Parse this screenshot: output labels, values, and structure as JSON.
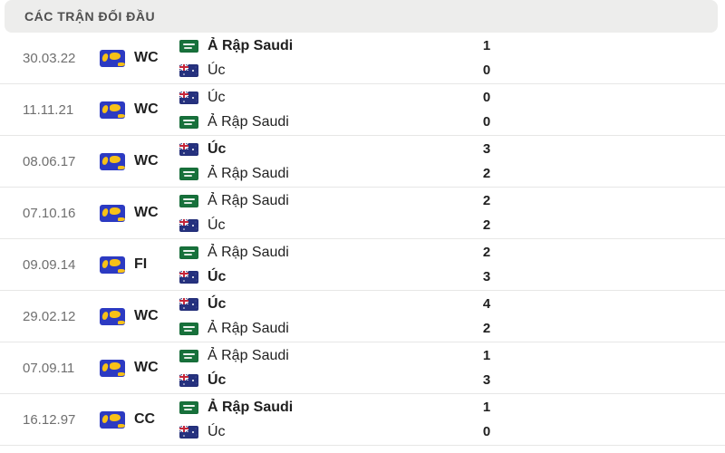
{
  "header": {
    "title": "CÁC TRẬN ĐỐI ĐẦU"
  },
  "icons": {
    "competition_badge": "world-map-icon",
    "flag_sa": "saudi-arabia-flag-icon",
    "flag_au": "australia-flag-icon"
  },
  "colors": {
    "header_bg": "#ededec",
    "header_text": "#4f4f4f",
    "text_dark": "#1f1f1f",
    "text_muted": "#6f6f6f",
    "divider": "#e7e7e6",
    "badge_blue": "#2c3ac2",
    "badge_yellow": "#f7c118",
    "saudi_green": "#17713b",
    "australia_blue": "#25317e"
  },
  "matches": [
    {
      "date": "30.03.22",
      "competition": "WC",
      "home": {
        "name": "Ả Rập Saudi",
        "flag": "sa",
        "score": 1,
        "winner": true
      },
      "away": {
        "name": "Úc",
        "flag": "au",
        "score": 0,
        "winner": false
      }
    },
    {
      "date": "11.11.21",
      "competition": "WC",
      "home": {
        "name": "Úc",
        "flag": "au",
        "score": 0,
        "winner": false
      },
      "away": {
        "name": "Ả Rập Saudi",
        "flag": "sa",
        "score": 0,
        "winner": false
      }
    },
    {
      "date": "08.06.17",
      "competition": "WC",
      "home": {
        "name": "Úc",
        "flag": "au",
        "score": 3,
        "winner": true
      },
      "away": {
        "name": "Ả Rập Saudi",
        "flag": "sa",
        "score": 2,
        "winner": false
      }
    },
    {
      "date": "07.10.16",
      "competition": "WC",
      "home": {
        "name": "Ả Rập Saudi",
        "flag": "sa",
        "score": 2,
        "winner": false
      },
      "away": {
        "name": "Úc",
        "flag": "au",
        "score": 2,
        "winner": false
      }
    },
    {
      "date": "09.09.14",
      "competition": "FI",
      "home": {
        "name": "Ả Rập Saudi",
        "flag": "sa",
        "score": 2,
        "winner": false
      },
      "away": {
        "name": "Úc",
        "flag": "au",
        "score": 3,
        "winner": true
      }
    },
    {
      "date": "29.02.12",
      "competition": "WC",
      "home": {
        "name": "Úc",
        "flag": "au",
        "score": 4,
        "winner": true
      },
      "away": {
        "name": "Ả Rập Saudi",
        "flag": "sa",
        "score": 2,
        "winner": false
      }
    },
    {
      "date": "07.09.11",
      "competition": "WC",
      "home": {
        "name": "Ả Rập Saudi",
        "flag": "sa",
        "score": 1,
        "winner": false
      },
      "away": {
        "name": "Úc",
        "flag": "au",
        "score": 3,
        "winner": true
      }
    },
    {
      "date": "16.12.97",
      "competition": "CC",
      "home": {
        "name": "Ả Rập Saudi",
        "flag": "sa",
        "score": 1,
        "winner": true
      },
      "away": {
        "name": "Úc",
        "flag": "au",
        "score": 0,
        "winner": false
      }
    }
  ]
}
